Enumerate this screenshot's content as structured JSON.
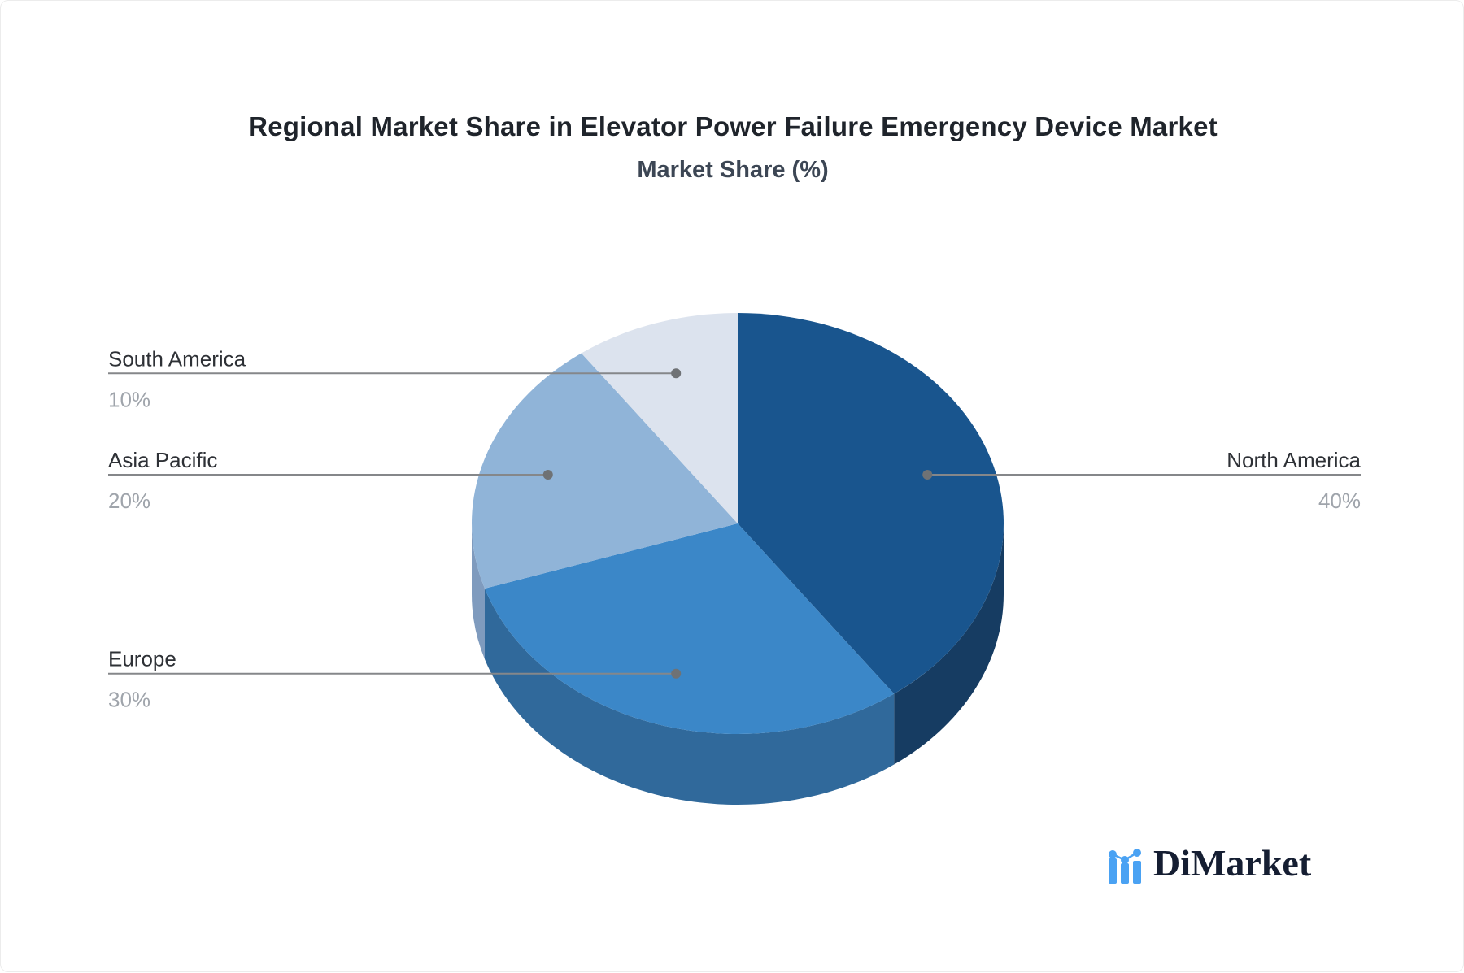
{
  "page": {
    "title": "Regional Market Share in Elevator Power Failure Emergency Device Market",
    "subtitle": "Market Share (%)"
  },
  "brand": {
    "name": "DiMarket",
    "icon": "bar-chart-logo-icon",
    "text_color": "#151E32",
    "accent_color": "#4AA2F3"
  },
  "chart_data": {
    "type": "pie",
    "title": "Regional Market Share in Elevator Power Failure Emergency Device Market",
    "subtitle": "Market Share (%)",
    "unit": "%",
    "effect": "3d-extruded",
    "start_angle_deg": 0,
    "direction": "clockwise",
    "legend_position": "none",
    "grid": false,
    "slices": [
      {
        "label": "North America",
        "value": 40,
        "pct_label": "40%",
        "color": "#19558E",
        "side_color": "#163C62",
        "label_side": "right"
      },
      {
        "label": "Europe",
        "value": 30,
        "pct_label": "30%",
        "color": "#3B87C8",
        "side_color": "#30699B",
        "label_side": "left"
      },
      {
        "label": "Asia Pacific",
        "value": 20,
        "pct_label": "20%",
        "color": "#90B4D8",
        "side_color": "#7F9BBE",
        "label_side": "left"
      },
      {
        "label": "South America",
        "value": 10,
        "pct_label": "10%",
        "color": "#DCE3EE",
        "side_color": "#C3CDDD",
        "label_side": "left"
      }
    ],
    "callout_style": {
      "line_color": "#85878A",
      "dot_color": "#6F7275",
      "name_color": "#2E3136",
      "pct_color": "#9FA4AB"
    }
  }
}
